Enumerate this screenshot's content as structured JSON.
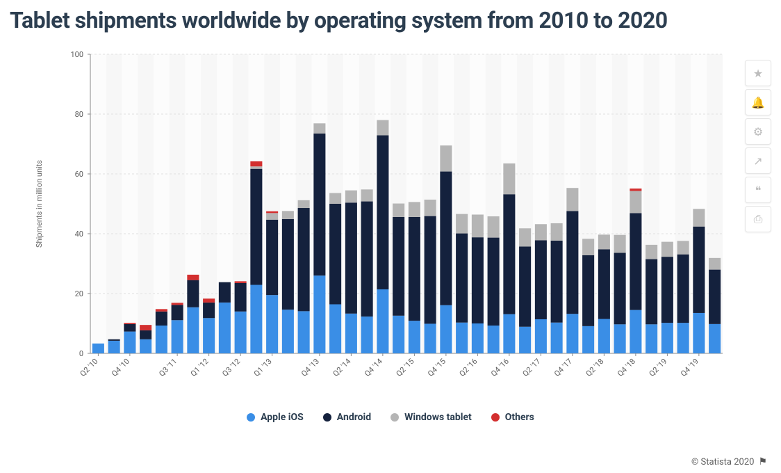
{
  "title": "Tablet shipments worldwide by operating system from 2010 to 2020",
  "attribution": "© Statista 2020",
  "chart": {
    "type": "stacked-bar",
    "ylabel": "Shipments in million units",
    "ylim": [
      0,
      100
    ],
    "ytick_step": 20,
    "background_color": "#ffffff",
    "plot_bg_stripe_light": "#fcfcfc",
    "plot_bg_stripe_dark": "#f7f7f7",
    "grid_color": "#e0e0e0",
    "bar_gap_ratio": 0.25,
    "series": [
      {
        "key": "ios",
        "label": "Apple iOS",
        "color": "#3a8ee6"
      },
      {
        "key": "android",
        "label": "Android",
        "color": "#14213d"
      },
      {
        "key": "windows",
        "label": "Windows tablet",
        "color": "#b5b5b5"
      },
      {
        "key": "others",
        "label": "Others",
        "color": "#d32f2f"
      }
    ],
    "categories": [
      "Q2 '10",
      "Q3 '10",
      "Q4 '10",
      "Q1 '11",
      "Q2 '11",
      "Q3 '11",
      "Q4 '11",
      "Q1 '12",
      "Q2 '12",
      "Q3 '12",
      "Q4 '12",
      "Q1 '13",
      "Q2 '13",
      "Q3 '13",
      "Q4 '13",
      "Q1 '14",
      "Q2 '14",
      "Q3 '14",
      "Q4 '14",
      "Q1 '15",
      "Q2 '15",
      "Q3 '15",
      "Q4 '15",
      "Q1 '16",
      "Q2 '16",
      "Q3 '16",
      "Q4 '16",
      "Q1 '17",
      "Q2 '17",
      "Q3 '17",
      "Q4 '17",
      "Q1 '18",
      "Q2 '18",
      "Q3 '18",
      "Q4 '18",
      "Q1 '19",
      "Q2 '19",
      "Q3 '19",
      "Q4 '19",
      "Q1 '20"
    ],
    "xtick_labels": [
      "Q2 '10",
      "",
      "Q4 '10",
      "",
      "",
      "Q3 '11",
      "",
      "Q1 '12",
      "",
      "Q3 '12",
      "",
      "Q1 '13",
      "",
      "",
      "Q4 '13",
      "",
      "Q2 '14",
      "",
      "Q4 '14",
      "",
      "Q2 '15",
      "",
      "Q4 '15",
      "",
      "Q2 '16",
      "",
      "Q4 '16",
      "",
      "Q2 '17",
      "",
      "Q4 '17",
      "",
      "Q2 '18",
      "",
      "Q4 '18",
      "",
      "Q2 '19",
      "",
      "Q4 '19",
      ""
    ],
    "data": {
      "ios": [
        3.3,
        4.2,
        7.3,
        4.7,
        9.3,
        11.1,
        15.4,
        11.8,
        17.0,
        14.0,
        22.9,
        19.5,
        14.6,
        14.1,
        26.0,
        16.4,
        13.3,
        12.3,
        21.4,
        12.6,
        10.9,
        9.9,
        16.1,
        10.3,
        10.0,
        9.3,
        13.1,
        8.9,
        11.4,
        10.3,
        13.2,
        9.1,
        11.5,
        9.7,
        14.5,
        9.7,
        10.2,
        10.2,
        13.5,
        9.8
      ],
      "android": [
        0.0,
        0.5,
        2.5,
        3.0,
        4.7,
        5.1,
        9.1,
        5.2,
        6.8,
        9.5,
        38.8,
        25.2,
        30.3,
        34.5,
        47.5,
        33.6,
        37.1,
        38.5,
        51.5,
        33.0,
        34.7,
        36.0,
        44.7,
        29.8,
        28.8,
        29.4,
        40.1,
        26.8,
        26.4,
        27.4,
        34.4,
        23.7,
        23.3,
        23.9,
        32.4,
        21.8,
        22.1,
        22.9,
        28.9,
        18.2
      ],
      "windows": [
        0.0,
        0.0,
        0.0,
        0.0,
        0.0,
        0.0,
        0.0,
        0.0,
        0.0,
        0.0,
        0.8,
        2.2,
        2.7,
        2.6,
        3.4,
        3.6,
        4.1,
        4.0,
        5.1,
        4.5,
        5.0,
        5.5,
        8.7,
        6.5,
        7.6,
        7.1,
        10.3,
        6.1,
        5.4,
        5.8,
        7.7,
        5.5,
        4.9,
        6.0,
        7.4,
        4.8,
        5.0,
        4.5,
        5.9,
        3.9
      ],
      "others": [
        0.0,
        0.0,
        0.4,
        1.8,
        0.8,
        0.7,
        1.8,
        1.3,
        0.0,
        0.6,
        1.7,
        0.6,
        0.0,
        0.0,
        0.0,
        0.0,
        0.0,
        0.0,
        0.0,
        0.0,
        0.0,
        0.0,
        0.0,
        0.0,
        0.0,
        0.0,
        0.0,
        0.0,
        0.0,
        0.0,
        0.0,
        0.0,
        0.0,
        0.0,
        0.8,
        0.0,
        0.0,
        0.0,
        0.0,
        0.0
      ]
    }
  },
  "tools": [
    {
      "name": "favorite-icon",
      "glyph": "★"
    },
    {
      "name": "bell-icon",
      "glyph": "🔔"
    },
    {
      "name": "gear-icon",
      "glyph": "⚙"
    },
    {
      "name": "share-icon",
      "glyph": "↗"
    },
    {
      "name": "quote-icon",
      "glyph": "❝"
    },
    {
      "name": "print-icon",
      "glyph": "⎙"
    }
  ]
}
